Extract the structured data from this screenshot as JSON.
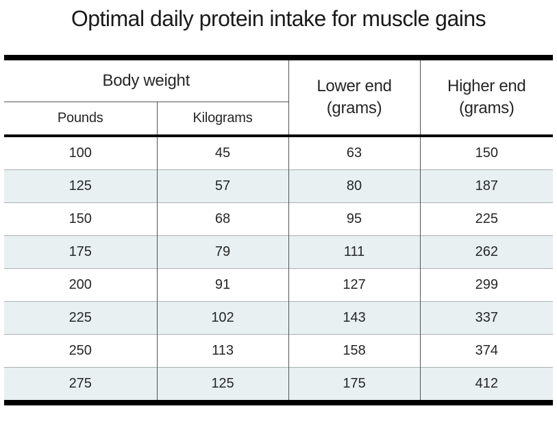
{
  "title": "Optimal daily protein intake for muscle gains",
  "colors": {
    "bar": "#000000",
    "stripe": "#e8f0f1",
    "row_divider": "#a9b0b3",
    "column_divider": "#4f5456",
    "text": "#262626"
  },
  "table": {
    "group_header": "Body weight",
    "columns": {
      "pounds": "Pounds",
      "kilograms": "Kilograms",
      "lower_label": "Lower end",
      "lower_unit": "(grams)",
      "higher_label": "Higher end",
      "higher_unit": "(grams)"
    }
  },
  "chart_data": {
    "type": "table",
    "title": "Optimal daily protein intake for muscle gains",
    "columns": [
      "Body weight (Pounds)",
      "Body weight (Kilograms)",
      "Lower end (grams)",
      "Higher end (grams)"
    ],
    "rows": [
      [
        "100",
        "45",
        "63",
        "150"
      ],
      [
        "125",
        "57",
        "80",
        "187"
      ],
      [
        "150",
        "68",
        "95",
        "225"
      ],
      [
        "175",
        "79",
        "111",
        "262"
      ],
      [
        "200",
        "91",
        "127",
        "299"
      ],
      [
        "225",
        "102",
        "143",
        "337"
      ],
      [
        "250",
        "113",
        "158",
        "374"
      ],
      [
        "275",
        "125",
        "175",
        "412"
      ]
    ]
  }
}
